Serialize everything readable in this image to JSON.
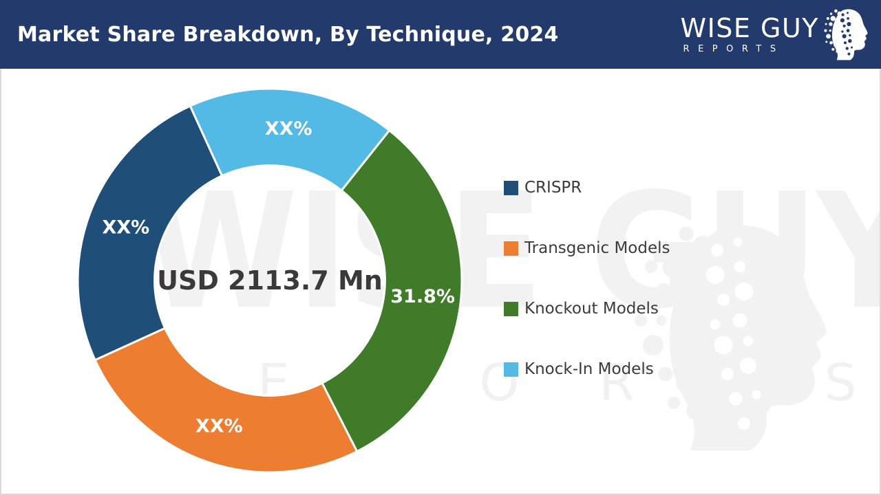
{
  "header": {
    "title": "Market Share Breakdown, By Technique, 2024",
    "logo": {
      "line1": "WISE GUY",
      "line2": "REPORTS"
    }
  },
  "watermark": {
    "line1": "WISE GUY",
    "line2": "R E P O R T S"
  },
  "chart_data": {
    "type": "pie",
    "subtype": "donut",
    "title": "Market Share Breakdown, By Technique, 2024",
    "center_label": "USD 2113.7 Mn",
    "categories": [
      "CRISPR",
      "Transgenic Models",
      "Knockout Models",
      "Knock-In Models"
    ],
    "values_pct": [
      25.0,
      25.7,
      31.8,
      17.5
    ],
    "displayed_labels": [
      "XX%",
      "XX%",
      "31.8%",
      "XX%"
    ],
    "colors": [
      "#1f4e79",
      "#ed7d31",
      "#3f7b28",
      "#53b9e5"
    ],
    "start_angle_deg": 114.5,
    "direction": "counterclockwise",
    "donut_hole_ratio": 0.6,
    "legend_position": "right",
    "label_color": "#ffffff",
    "center_label_color": "#3a3a3a"
  },
  "colors": {
    "header_bg": "#223a6c",
    "border": "#d9d9d9",
    "watermark": "#f2f2f2",
    "legend_text": "#3b3b3b"
  }
}
